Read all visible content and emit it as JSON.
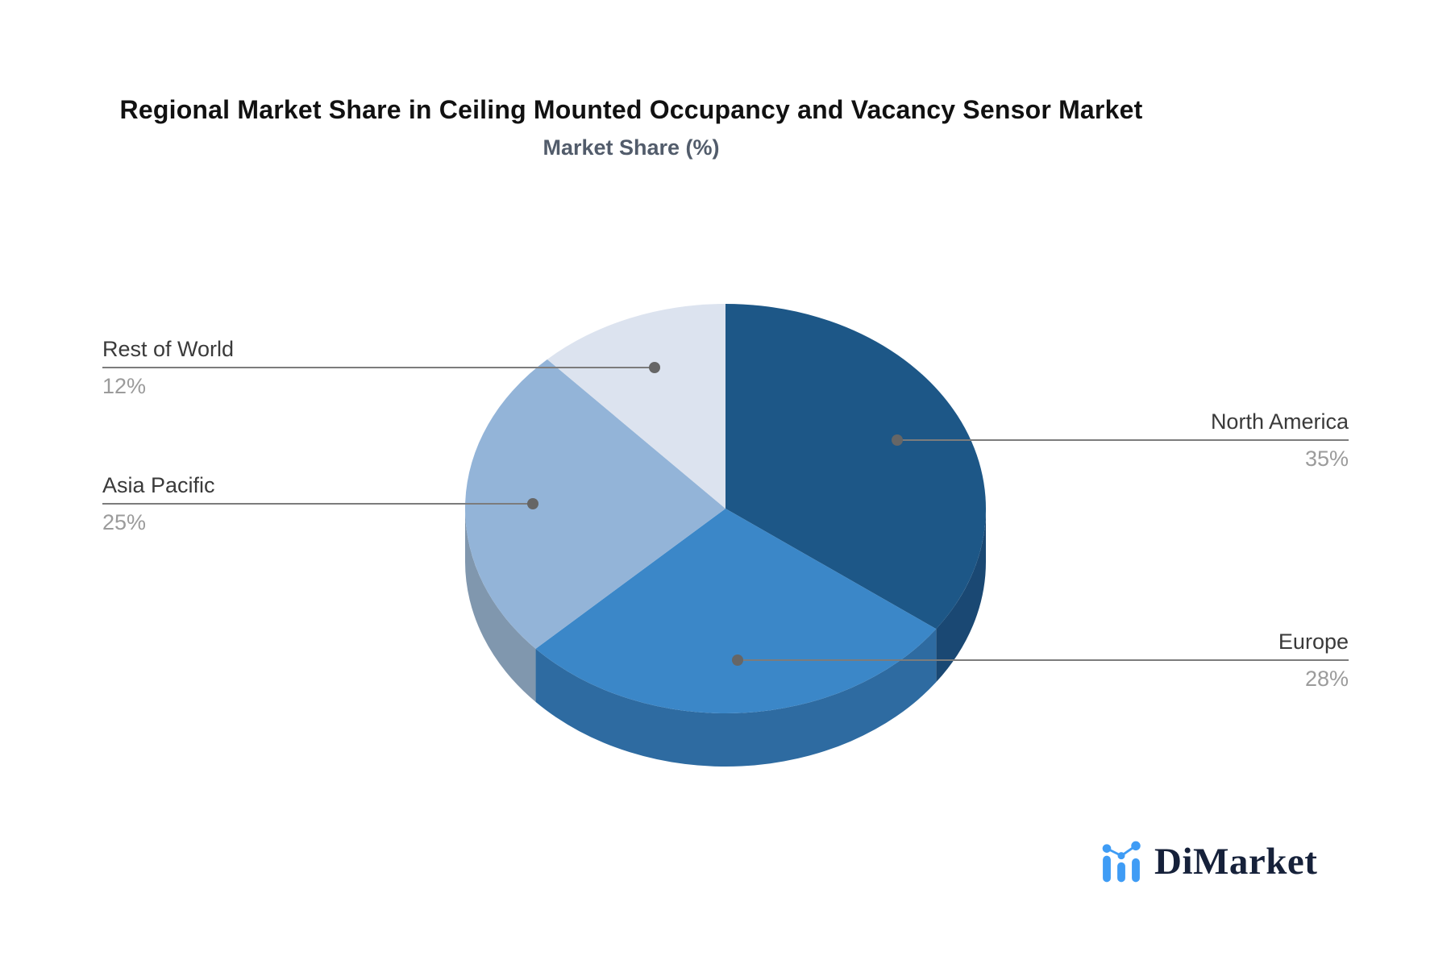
{
  "chart_data": {
    "type": "pie",
    "style": "3d-pie",
    "title": "Regional Market Share in Ceiling Mounted Occupancy and Vacancy Sensor Market",
    "subtitle": "Market Share (%)",
    "categories": [
      "North America",
      "Europe",
      "Asia Pacific",
      "Rest of World"
    ],
    "values": [
      35,
      28,
      25,
      12
    ],
    "value_labels": [
      "35%",
      "28%",
      "25%",
      "12%"
    ],
    "unit": "%",
    "start_angle_deg": 0,
    "direction": "clockwise",
    "legend_position": "none",
    "colors": [
      "#1d5787",
      "#3b87c8",
      "#93b4d8",
      "#dce3ef"
    ],
    "side_colors": [
      "#1a4873",
      "#2e6ba1",
      "#8097ae",
      "#c6cfdd"
    ],
    "callout": {
      "line_color": "#7c7c7c",
      "dot_color": "#666666",
      "label_color": "#3a3a3a",
      "value_color": "#9b9b9b"
    }
  },
  "logo": {
    "text": "DiMarket",
    "icon": "bar-line-chart",
    "icon_color": "#3f9cf5",
    "text_color": "#16213a"
  }
}
